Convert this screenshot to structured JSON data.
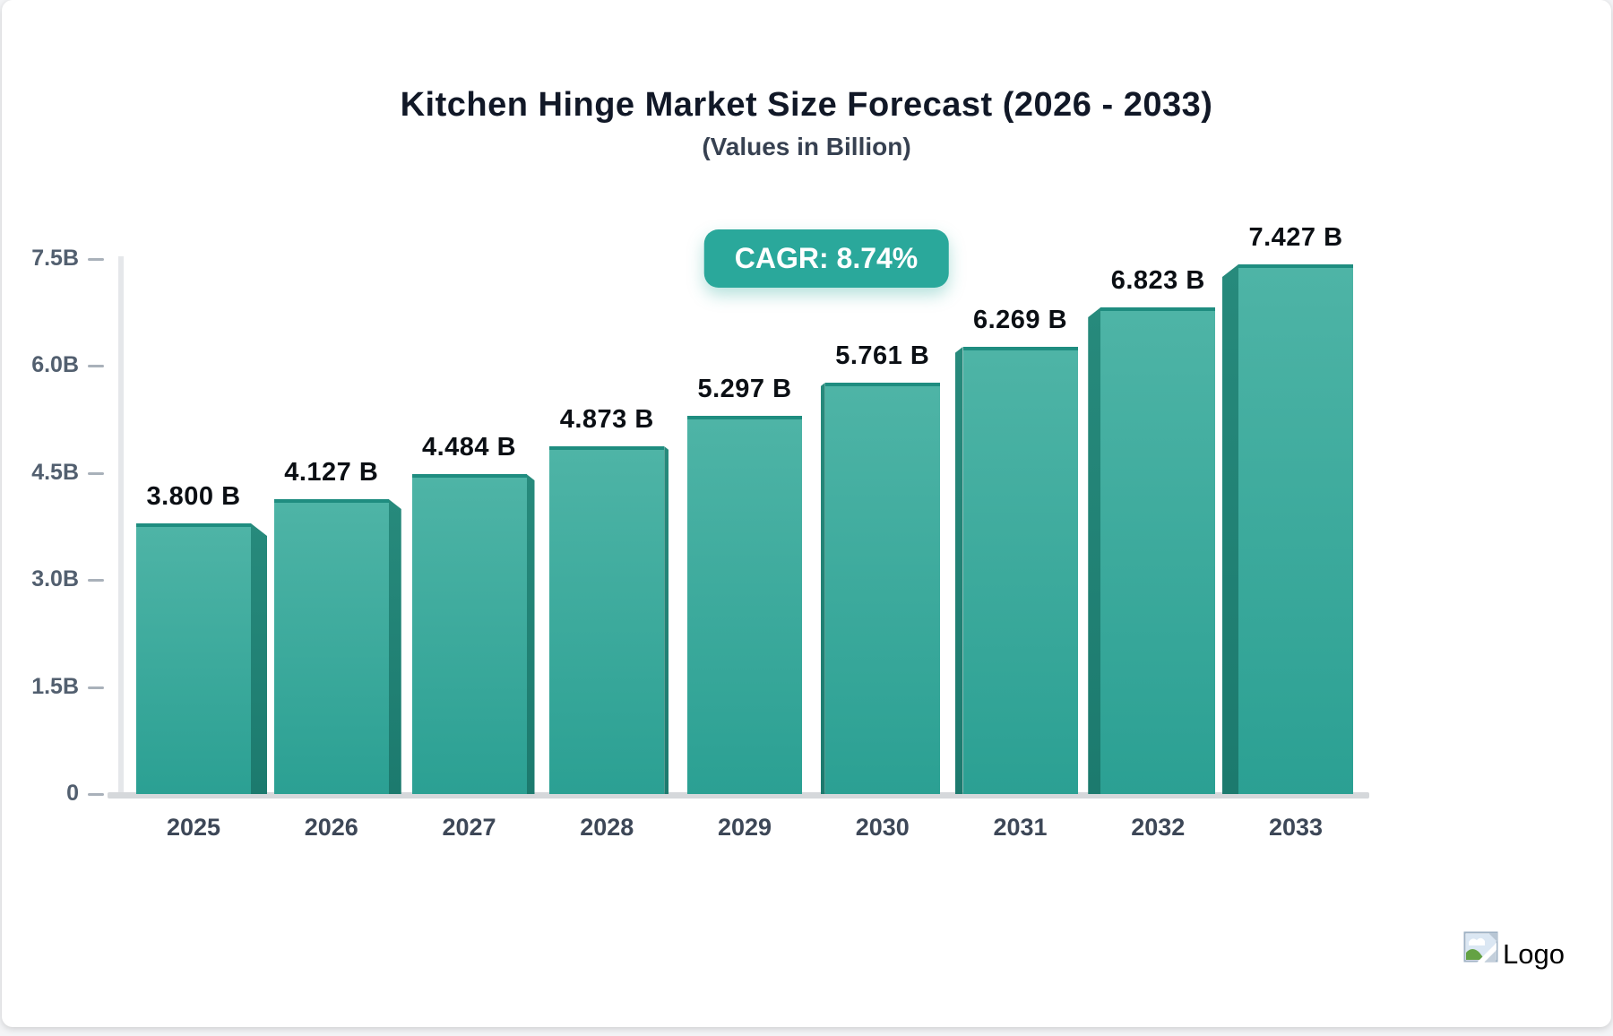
{
  "header": {
    "title": "Kitchen Hinge Market Size Forecast (2026 - 2033)",
    "subtitle": "(Values in Billion)",
    "cagr_label": "CAGR: 8.74%"
  },
  "logo": {
    "alt_text": "Logo"
  },
  "chart_data": {
    "type": "bar",
    "title": "Kitchen Hinge Market Size Forecast (2026 - 2033)",
    "subtitle": "(Values in Billion)",
    "annotation": "CAGR: 8.74%",
    "categories": [
      "2025",
      "2026",
      "2027",
      "2028",
      "2029",
      "2030",
      "2031",
      "2032",
      "2033"
    ],
    "values": [
      3.8,
      4.127,
      4.484,
      4.873,
      5.297,
      5.761,
      6.269,
      6.823,
      7.427
    ],
    "value_labels": [
      "3.800 B",
      "4.127 B",
      "4.484 B",
      "4.873 B",
      "5.297 B",
      "5.761 B",
      "6.269 B",
      "6.823 B",
      "7.427 B"
    ],
    "unit": "Billion",
    "xlabel": "",
    "ylabel": "",
    "ylim": [
      0,
      7.5
    ],
    "y_ticks": [
      {
        "value": 0.0,
        "label": "0"
      },
      {
        "value": 1.5,
        "label": "1.5B"
      },
      {
        "value": 3.0,
        "label": "3.0B"
      },
      {
        "value": 4.5,
        "label": "4.5B"
      },
      {
        "value": 6.0,
        "label": "6.0B"
      },
      {
        "value": 7.5,
        "label": "7.5B"
      }
    ],
    "grid": "off",
    "legend": "none",
    "style": "3d-columns",
    "colors": {
      "bar_top": "#4EB4A6",
      "bar_bottom": "#2BA093",
      "bar_cap": "#1F8D80",
      "bar_side_light": "#278A7C",
      "bar_side_dark": "#1C7A6E",
      "badge_bg": "#2AA89B"
    }
  }
}
